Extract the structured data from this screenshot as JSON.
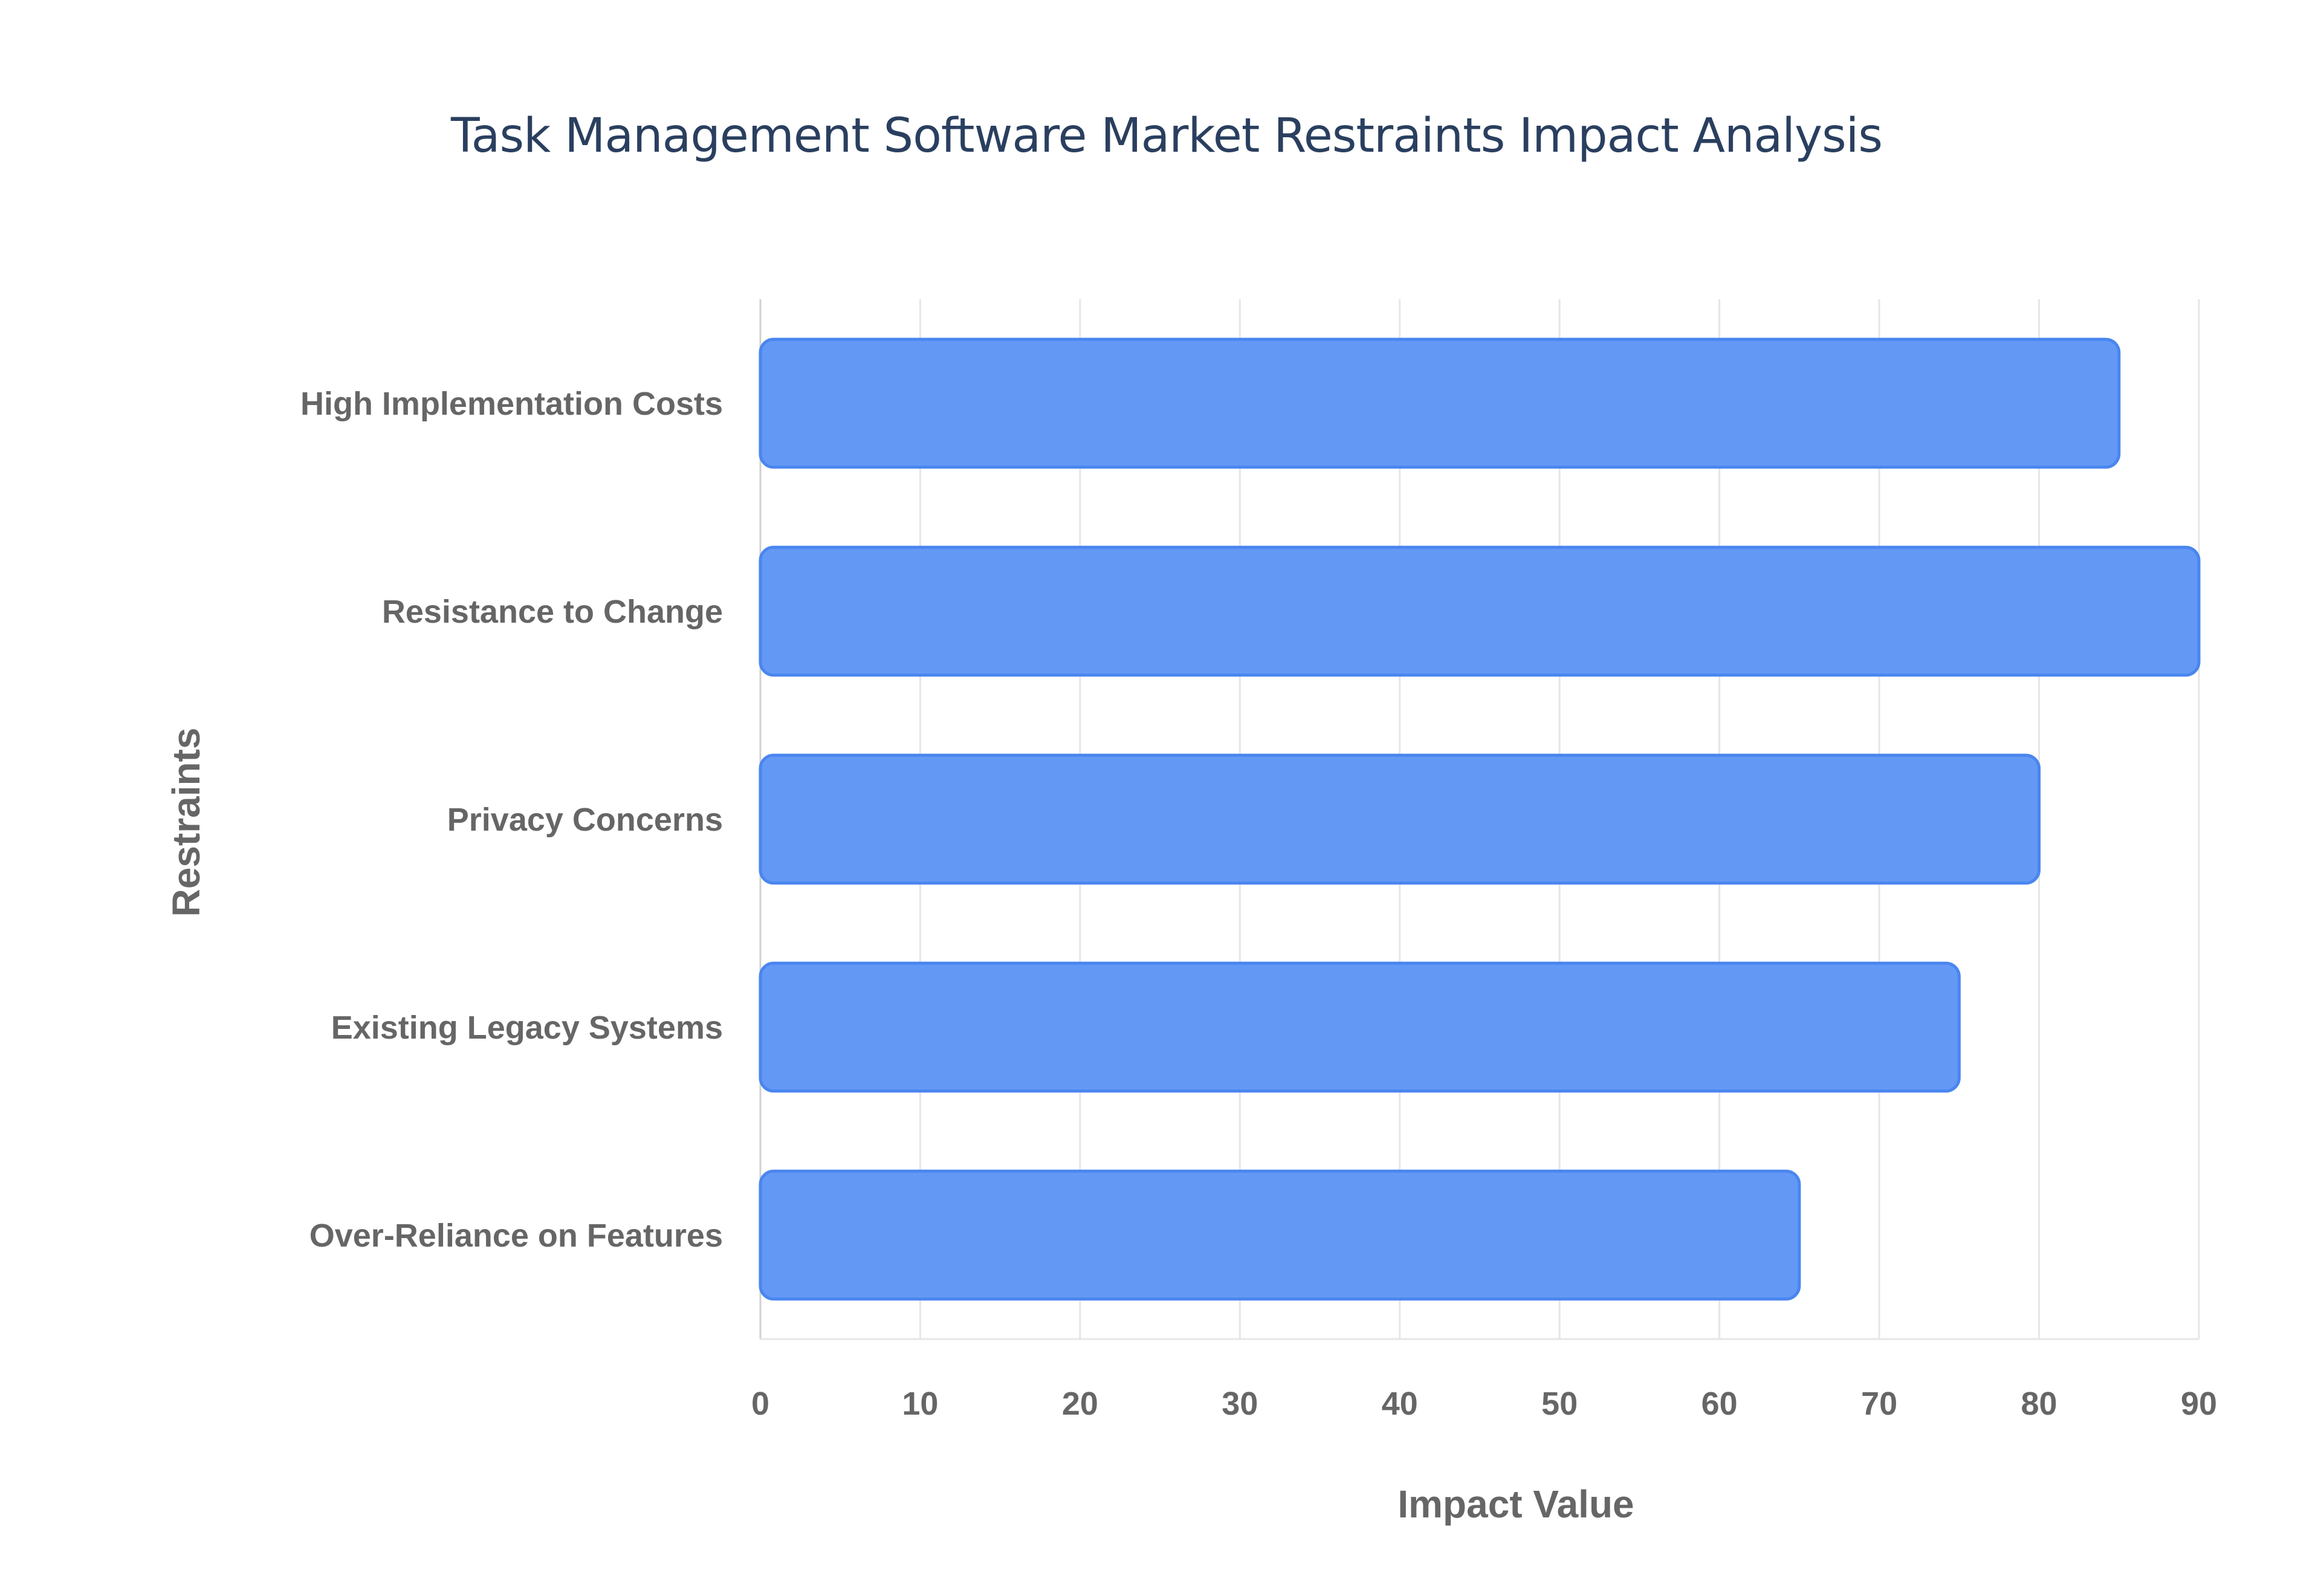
{
  "chart_data": {
    "type": "bar",
    "orientation": "horizontal",
    "title": "Task Management Software Market Restraints Impact Analysis",
    "xlabel": "Impact Value",
    "ylabel": "Restraints",
    "categories": [
      "High Implementation Costs",
      "Resistance to Change",
      "Privacy Concerns",
      "Existing Legacy Systems",
      "Over-Reliance on Features"
    ],
    "values": [
      85,
      90,
      80,
      75,
      65
    ],
    "xlim": [
      0,
      90
    ],
    "xticks": [
      0,
      10,
      20,
      30,
      40,
      50,
      60,
      70,
      80,
      90
    ],
    "grid": true,
    "bar_color": "#6399f5",
    "bar_border_color": "#4a86ef"
  }
}
